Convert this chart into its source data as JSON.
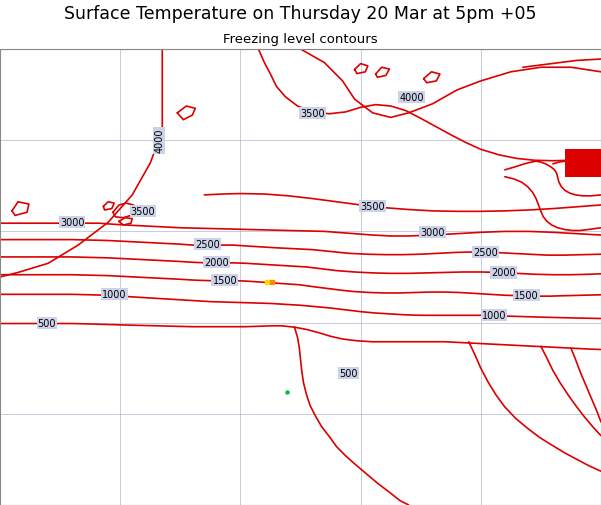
{
  "title": "Surface Temperature on Thursday 20 Mar at 5pm +05",
  "subtitle": "Freezing level contours",
  "bg_color": "#ccd3e8",
  "title_bg": "#ffffff",
  "contour_color": "#dd0000",
  "grid_color": "#b0b8d0",
  "title_fontsize": 12.5,
  "subtitle_fontsize": 9.5,
  "label_fontsize": 7.0,
  "lw": 1.2
}
